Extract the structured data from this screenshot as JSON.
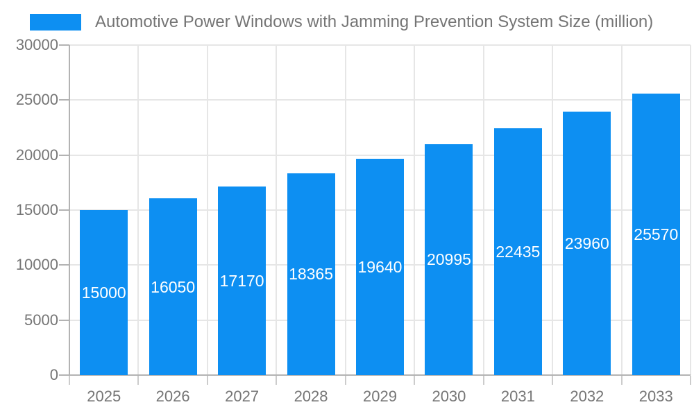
{
  "legend": {
    "label": "Automotive Power Windows with Jamming Prevention System Size (million)"
  },
  "chart_data": {
    "type": "bar",
    "categories": [
      "2025",
      "2026",
      "2027",
      "2028",
      "2029",
      "2030",
      "2031",
      "2032",
      "2033"
    ],
    "values": [
      15000,
      16050,
      17170,
      18365,
      19640,
      20995,
      22435,
      23960,
      25570
    ],
    "title": "Automotive Power Windows with Jamming Prevention System Size (million)",
    "xlabel": "",
    "ylabel": "",
    "ylim": [
      0,
      30000
    ],
    "yticks": [
      0,
      5000,
      10000,
      15000,
      20000,
      25000,
      30000
    ],
    "grid": true,
    "legend_position": "top-left",
    "bar_value_labels": "inside-center",
    "colors": {
      "bar": "#0d8ff2",
      "title_text": "#757575",
      "axis_text": "#757575",
      "gridline": "#e6e6e6",
      "axis_line": "#b3b3b3",
      "tick": "#cccccc",
      "bar_label": "#ffffff",
      "background": "#ffffff"
    }
  }
}
